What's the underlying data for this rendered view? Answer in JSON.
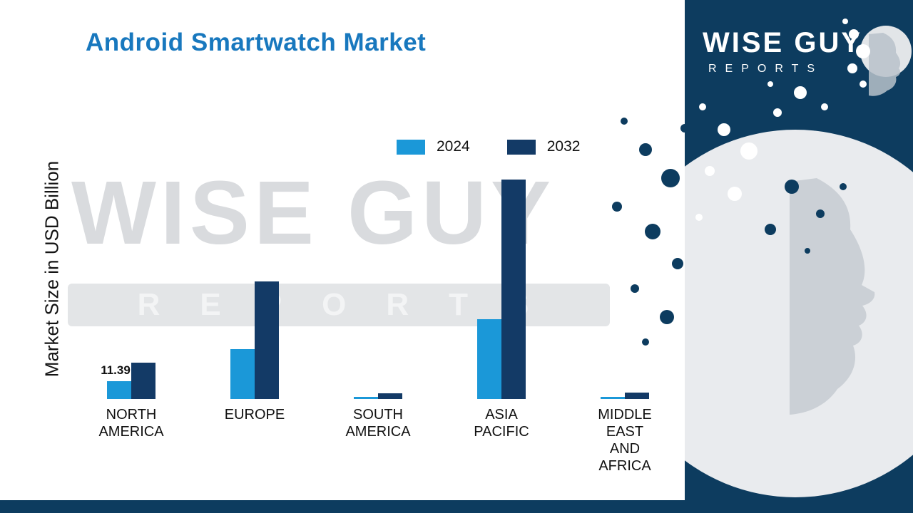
{
  "header": {
    "title": "Android Smartwatch Market"
  },
  "logo": {
    "line1": "WISE GUY",
    "line2": "REPORTS"
  },
  "watermark": {
    "line1": "WISE GUY",
    "line2": "REPORTS"
  },
  "legend": [
    {
      "label": "2024",
      "color": "#1b98d8"
    },
    {
      "label": "2032",
      "color": "#133a66"
    }
  ],
  "axis": {
    "y_label": "Market Size in USD Billion"
  },
  "colors": {
    "title_blue": "#1878be",
    "series_2024": "#1b98d8",
    "series_2032": "#133a66",
    "brand_panel_navy": "#0d3c5f"
  },
  "chart_data": {
    "type": "bar",
    "title": "Android Smartwatch Market",
    "ylabel": "Market Size in USD Billion",
    "unit": "USD Billion",
    "categories": [
      "NORTH AMERICA",
      "EUROPE",
      "SOUTH AMERICA",
      "ASIA PACIFIC",
      "MIDDLE EAST AND AFRICA"
    ],
    "category_display": [
      "NORTH\nAMERICA",
      "EUROPE",
      "SOUTH\nAMERICA",
      "ASIA\nPACIFIC",
      "MIDDLE\nEAST\nAND\nAFRICA"
    ],
    "series": [
      {
        "name": "2024",
        "color": "#1b98d8",
        "values": [
          11.39,
          32,
          1.2,
          51,
          1.5
        ],
        "labels": [
          "11.39",
          "",
          "",
          "",
          ""
        ]
      },
      {
        "name": "2032",
        "color": "#133a66",
        "values": [
          23,
          75,
          3.5,
          140,
          4
        ],
        "labels": [
          "",
          "",
          "",
          "",
          ""
        ]
      }
    ],
    "ylim": [
      0,
      150
    ],
    "grid": false,
    "legend_position": "top-right"
  }
}
